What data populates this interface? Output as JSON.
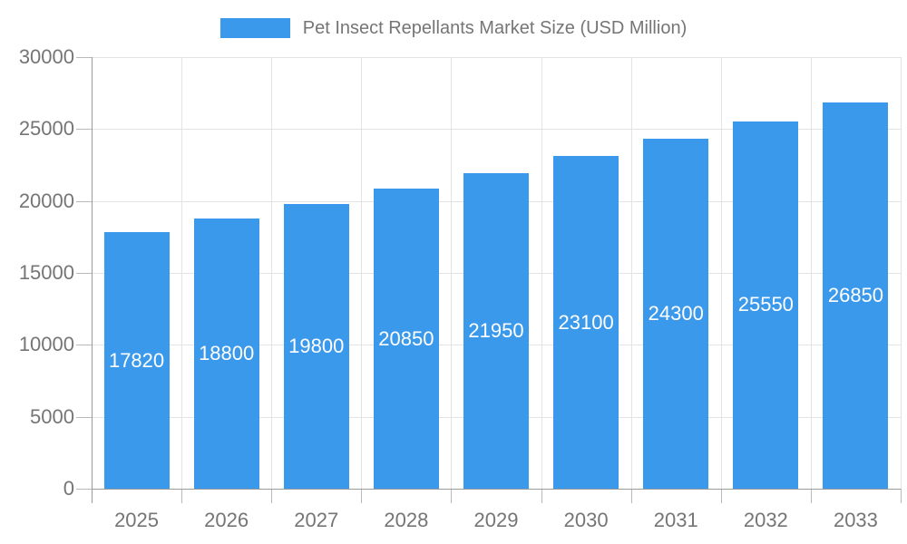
{
  "legend": {
    "label": "Pet Insect Repellants Market Size (USD Million)"
  },
  "chart_data": {
    "type": "bar",
    "title": "Pet Insect Repellants Market Size (USD Million)",
    "categories": [
      "2025",
      "2026",
      "2027",
      "2028",
      "2029",
      "2030",
      "2031",
      "2032",
      "2033"
    ],
    "values": [
      17820,
      18800,
      19800,
      20850,
      21950,
      23100,
      24300,
      25550,
      26850
    ],
    "xlabel": "",
    "ylabel": "",
    "ylim": [
      0,
      30000
    ],
    "yticks": [
      0,
      5000,
      10000,
      15000,
      20000,
      25000,
      30000
    ],
    "grid": true,
    "legend_position": "top",
    "bar_label_position": "inside-center"
  },
  "colors": {
    "bar": "#3B99EC",
    "bar_label": "#FFFFFF",
    "grid": "#E3E3E3",
    "axis": "#9A9A9A",
    "tick": "#B9B9B9",
    "text": "#757575",
    "background": "#FFFFFF"
  }
}
